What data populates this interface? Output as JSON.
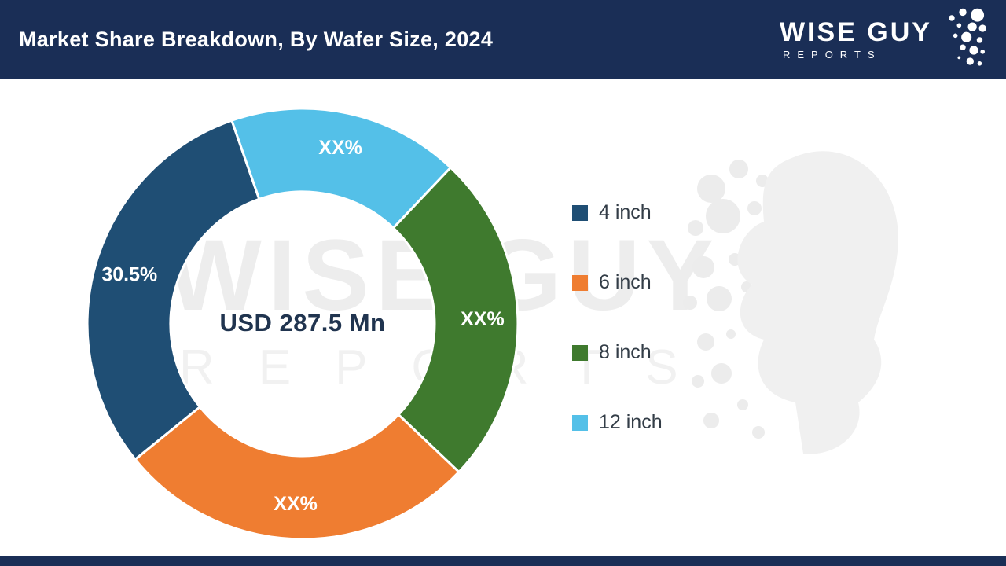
{
  "theme": {
    "header_bg": "#1a2e56",
    "footer_bg": "#1a2e56",
    "title_color": "#ffffff",
    "center_text_color": "#20344f",
    "legend_text_color": "#333d47",
    "watermark_color": "#ededed"
  },
  "header": {
    "title": "Market Share Breakdown, By Wafer Size, 2024",
    "logo": {
      "line1": "WISE GUY",
      "line2": "REPORTS"
    }
  },
  "watermark": {
    "line1": "WISE GUY",
    "line2": "REPORTS"
  },
  "chart_data": {
    "type": "pie",
    "subtype": "donut",
    "title": "Market Share Breakdown, By Wafer Size, 2024",
    "center_text": "USD 287.5 Mn",
    "units": "percent",
    "start_angle_deg": 231,
    "legend_position": "right",
    "segments": [
      {
        "name": "4 inch",
        "display_label": "30.5%",
        "value": 30.5,
        "color": "#1f4e74"
      },
      {
        "name": "12 inch",
        "display_label": "XX%",
        "value": 17.4,
        "color": "#54c0e8"
      },
      {
        "name": "8 inch",
        "display_label": "XX%",
        "value": 25.0,
        "color": "#3f7a2e"
      },
      {
        "name": "6 inch",
        "display_label": "XX%",
        "value": 27.1,
        "color": "#ef7d31"
      }
    ],
    "legend": [
      {
        "label": "4 inch",
        "color": "#1f4e74"
      },
      {
        "label": "6 inch",
        "color": "#ef7d31"
      },
      {
        "label": "8 inch",
        "color": "#3f7a2e"
      },
      {
        "label": "12 inch",
        "color": "#54c0e8"
      }
    ]
  }
}
